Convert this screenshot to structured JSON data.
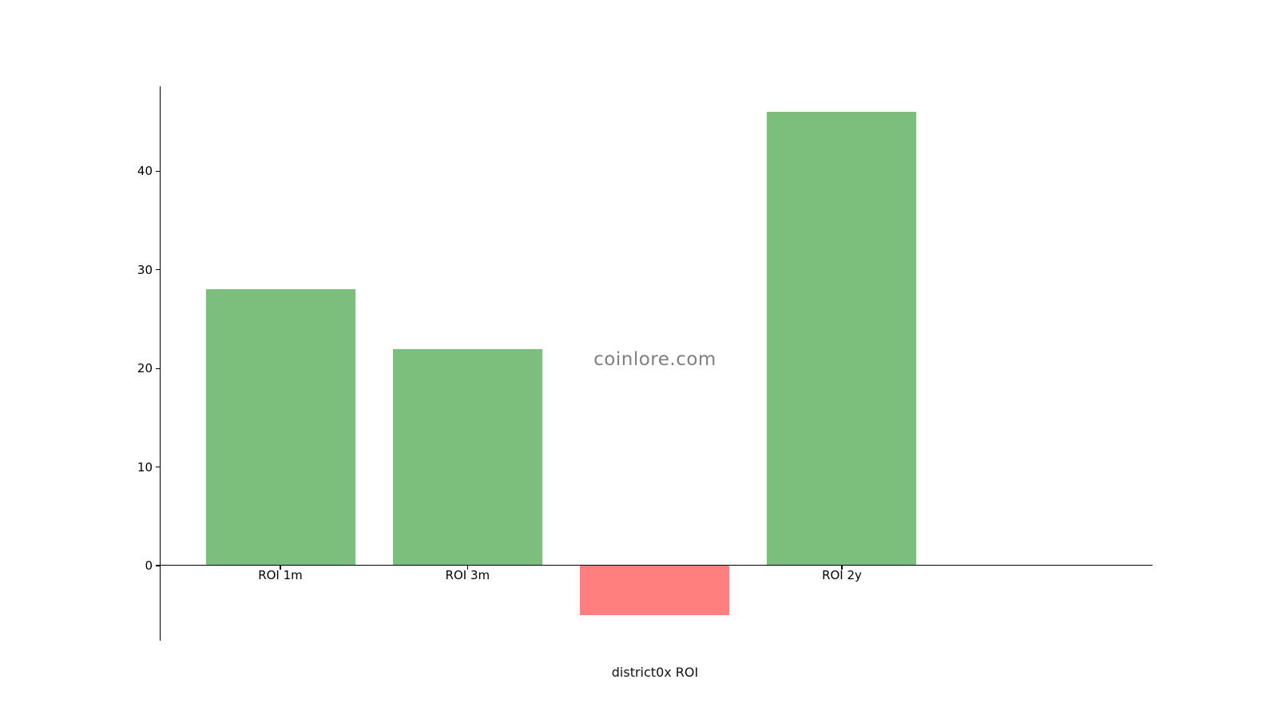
{
  "page": {
    "background_color": "#ffffff"
  },
  "chart_data": {
    "type": "bar",
    "title": "district0x ROI",
    "categories": [
      "ROI 1m",
      "ROI 3m",
      "",
      "ROI 2y"
    ],
    "values": [
      28,
      22,
      -5,
      46
    ],
    "bar_colors": [
      "#7cbe7c",
      "#7cbe7c",
      "#ff7f7f",
      "#7cbe7c"
    ],
    "positive_color": "#7cbe7c",
    "negative_color": "#ff7f7f",
    "yticks": [
      0,
      10,
      20,
      30,
      40
    ],
    "ytick_labels": [
      "0",
      "10",
      "20",
      "30",
      "40"
    ],
    "ylim": [
      -7.7,
      48.6
    ],
    "xlabel": "",
    "ylabel": "",
    "grid": false,
    "legend_position": "none",
    "axis_color": "#000000",
    "watermark": "coinlore.com",
    "watermark_color": "#7f7f7f"
  }
}
